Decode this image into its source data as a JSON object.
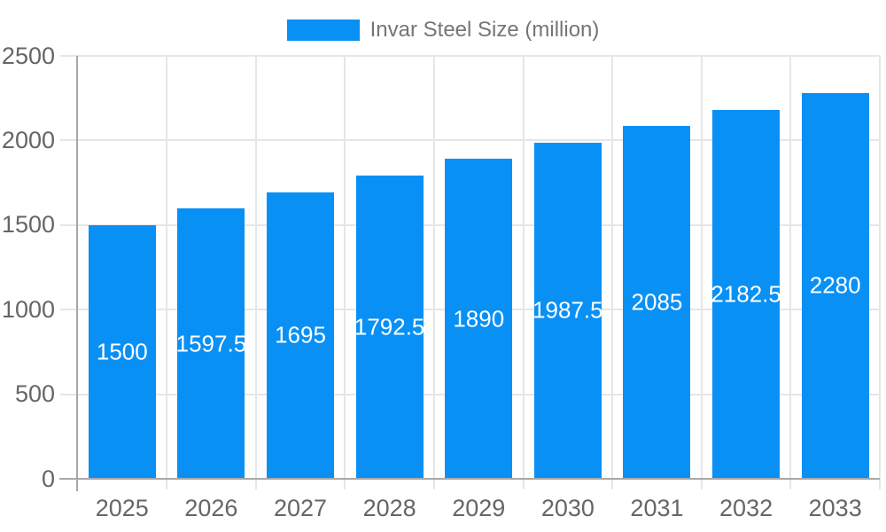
{
  "chart_data": {
    "type": "bar",
    "title": "",
    "legend_label": "Invar Steel Size (million)",
    "legend_position": "top",
    "categories": [
      "2025",
      "2026",
      "2027",
      "2028",
      "2029",
      "2030",
      "2031",
      "2032",
      "2033"
    ],
    "series": [
      {
        "name": "Invar Steel Size (million)",
        "values": [
          1500,
          1597.5,
          1695,
          1792.5,
          1890,
          1987.5,
          2085,
          2182.5,
          2280
        ]
      }
    ],
    "value_labels": [
      "1500",
      "1597.5",
      "1695",
      "1792.5",
      "1890",
      "1987.5",
      "2085",
      "2182.5",
      "2280"
    ],
    "xlabel": "",
    "ylabel": "",
    "ylim": [
      0,
      2500
    ],
    "yticks": [
      0,
      500,
      1000,
      1500,
      2000,
      2500
    ],
    "grid": true,
    "colors": {
      "bar": "#0990f5",
      "value_label": "#ffffff",
      "axis_text": "#666666",
      "legend_text": "#757575",
      "grid_line": "#e6e6e6",
      "axis_line": "#a8a8a8",
      "background": "#ffffff"
    }
  }
}
